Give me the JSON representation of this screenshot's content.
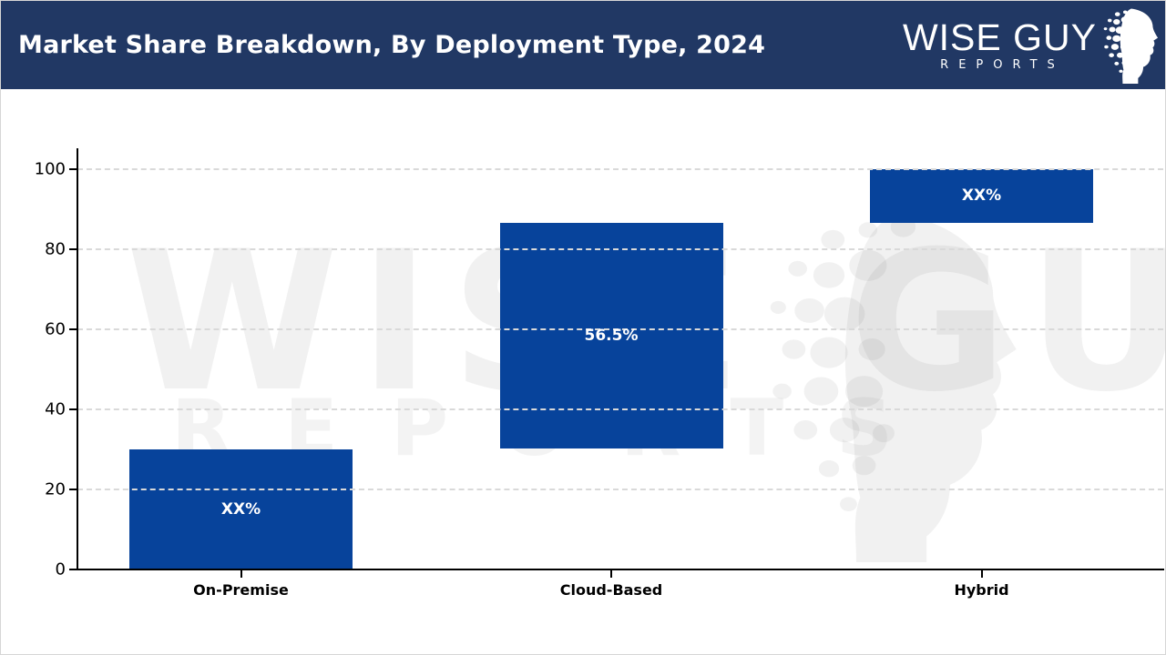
{
  "header": {
    "title": "Market Share Breakdown, By Deployment Type, 2024",
    "bg_color": "#213864",
    "logo": {
      "line1": "WISE GUY",
      "line2": "REPORTS"
    }
  },
  "watermark": {
    "line1": "WISE GUY",
    "line2": "REPORTS"
  },
  "chart_data": {
    "type": "bar",
    "variant": "waterfall",
    "title": "Market Share Breakdown, By Deployment Type, 2024",
    "categories": [
      "On-Premise",
      "Cloud-Based",
      "Hybrid"
    ],
    "segments": [
      {
        "category": "On-Premise",
        "start": 0,
        "end": 30,
        "label": "XX%"
      },
      {
        "category": "Cloud-Based",
        "start": 30,
        "end": 86.5,
        "label": "56.5%"
      },
      {
        "category": "Hybrid",
        "start": 86.5,
        "end": 100,
        "label": "XX%"
      }
    ],
    "yticks": [
      0,
      20,
      40,
      60,
      80,
      100
    ],
    "ylim": [
      0,
      105
    ],
    "xlabel": "",
    "ylabel": "",
    "legend": false,
    "grid": {
      "axis": "y",
      "style": "dashed",
      "color": "#d9d9d9",
      "above_bars": true
    },
    "bar_color": "#07439B",
    "bar_label_color": "#ffffff",
    "axis_color": "#000000"
  }
}
